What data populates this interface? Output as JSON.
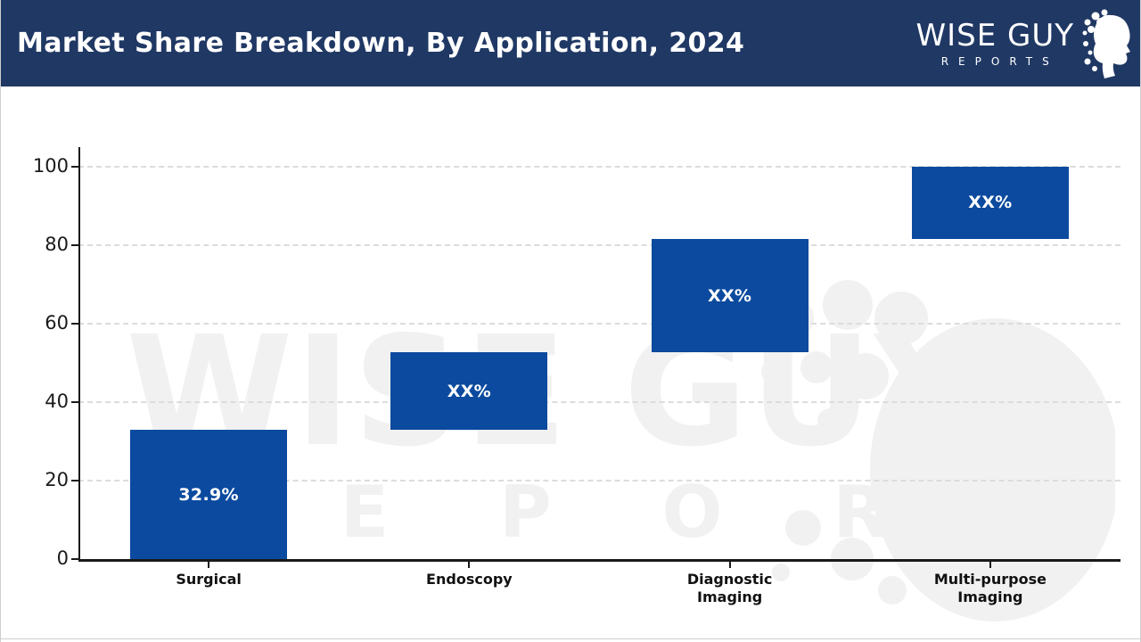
{
  "header": {
    "title": "Market Share Breakdown, By Application, 2024",
    "bg_color": "#203864",
    "logo": {
      "line1": "WISE GUY",
      "line2": "REPORTS"
    }
  },
  "watermark": {
    "line1": "WISE GUY",
    "line2": "R E P O R T S"
  },
  "chart_data": {
    "type": "bar",
    "subtype": "waterfall",
    "title": "Market Share Breakdown, By Application, 2024",
    "categories": [
      "Surgical",
      "Endoscopy",
      "Diagnostic Imaging",
      "Multi-purpose Imaging"
    ],
    "segments": [
      {
        "category": "Surgical",
        "start": 0,
        "end": 32.9,
        "label": "32.9%"
      },
      {
        "category": "Endoscopy",
        "start": 32.9,
        "end": 52.7,
        "label": "XX%"
      },
      {
        "category": "Diagnostic Imaging",
        "start": 52.7,
        "end": 81.6,
        "label": "XX%"
      },
      {
        "category": "Multi-purpose Imaging",
        "start": 81.6,
        "end": 100,
        "label": "XX%"
      }
    ],
    "y_ticks": [
      0,
      20,
      40,
      60,
      80,
      100
    ],
    "ylim": [
      0,
      100
    ],
    "xlabel": "",
    "ylabel": "",
    "grid": "horizontal dashed",
    "legend": "none",
    "bar_color": "#0b4a9e",
    "bar_label_color": "#ffffff",
    "axis_color": "#1a1a1a",
    "gridline_color": "#dcdcdc"
  }
}
